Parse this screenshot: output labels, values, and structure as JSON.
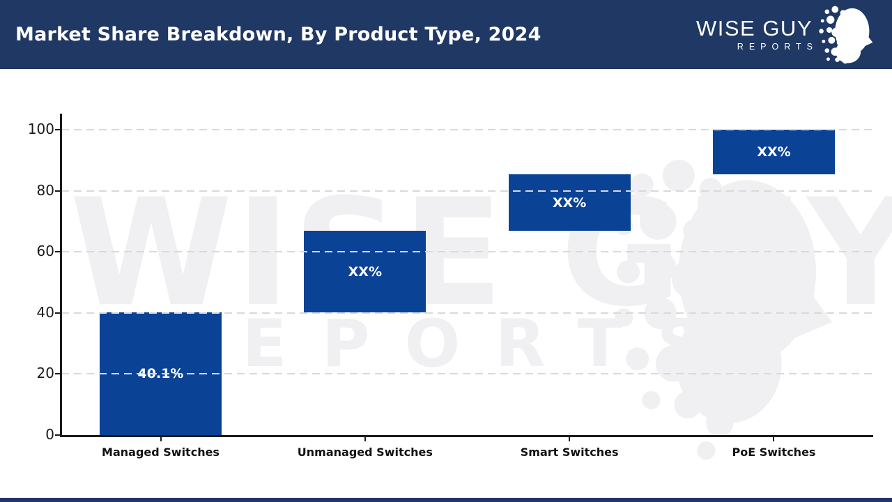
{
  "header": {
    "title": "Market Share Breakdown, By Product Type, 2024",
    "logo": {
      "primary": "WISE GUY",
      "secondary": "REPORTS"
    }
  },
  "watermark": {
    "line1": "WISE GUY",
    "line2": "REPORTS"
  },
  "colors": {
    "header_bg": "#1f3864",
    "footer_bg": "#1f3864",
    "bar_fill": "#0a4296",
    "bar_label": "#ffffff",
    "grid": "#d9d9d9",
    "axis": "#1a1a1a",
    "watermark": "#f0f0f2"
  },
  "chart_data": {
    "type": "bar",
    "subtype": "floating-waterfall",
    "title": "Market Share Breakdown, By Product Type, 2024",
    "categories": [
      "Managed Switches",
      "Unmanaged Switches",
      "Smart Switches",
      "PoE Switches"
    ],
    "segments": [
      {
        "category": "Managed Switches",
        "start": 0,
        "end": 40.1,
        "label": "40.1%"
      },
      {
        "category": "Unmanaged Switches",
        "start": 40.1,
        "end": 66.8,
        "label": "XX%"
      },
      {
        "category": "Smart Switches",
        "start": 66.8,
        "end": 85.4,
        "label": "XX%"
      },
      {
        "category": "PoE Switches",
        "start": 85.4,
        "end": 100,
        "label": "XX%"
      }
    ],
    "ylabel": "",
    "xlabel": "",
    "yticks": [
      0,
      20,
      40,
      60,
      80,
      100
    ],
    "ylim": [
      0,
      105
    ],
    "grid": "horizontal-dashed",
    "legend": "none"
  }
}
